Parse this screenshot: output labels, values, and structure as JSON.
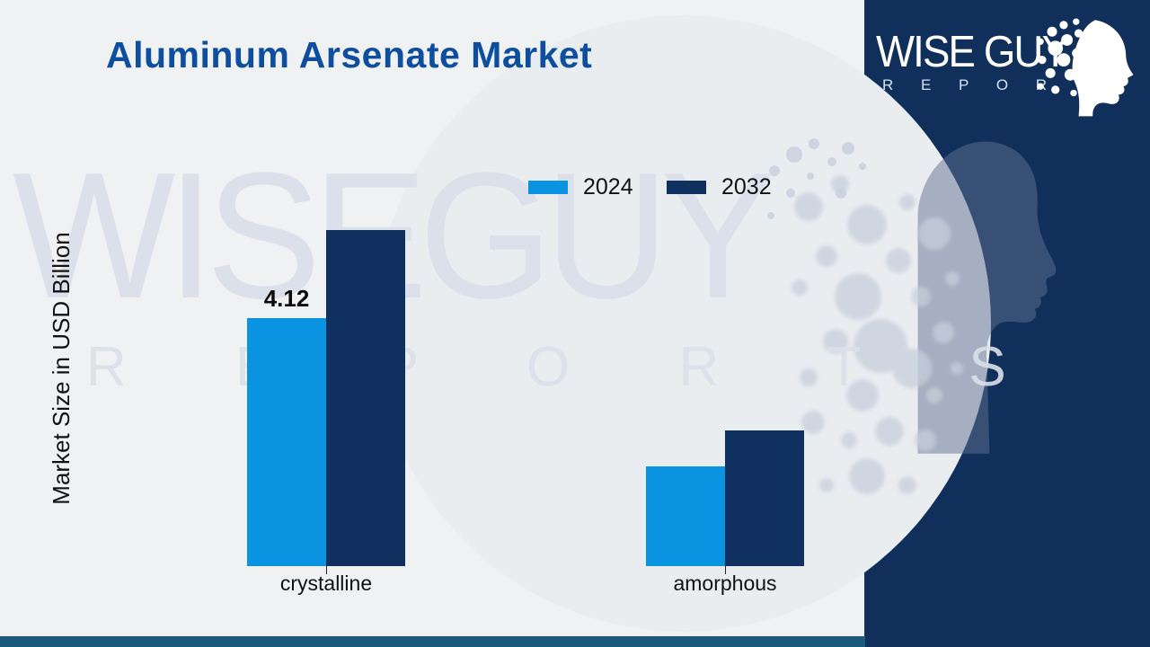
{
  "page_title": "Aluminum Arsenate Market",
  "logo": {
    "brand": "WISE GUY",
    "sub": "R E P O R T S"
  },
  "watermark": {
    "brand": "WISEGUY",
    "sub": "R E P O R T S"
  },
  "chart_data": {
    "type": "bar",
    "title": "Aluminum Arsenate Market",
    "ylabel": "Market Size in USD Billion",
    "xlabel": "",
    "categories": [
      "crystalline",
      "amorphous"
    ],
    "series": [
      {
        "name": "2024",
        "color": "#0a93e0",
        "values": [
          4.12,
          1.66
        ]
      },
      {
        "name": "2032",
        "color": "#10315f",
        "values": [
          5.58,
          2.25
        ]
      }
    ],
    "annotations": [
      {
        "category_index": 0,
        "series_index": 0,
        "text": "4.12"
      }
    ],
    "legend_position": "top",
    "grid": false,
    "value_axis_ticks_visible": false,
    "ylim": [
      0,
      6.5
    ]
  },
  "colors": {
    "background": "#f0f1f3",
    "right_panel": "#112f5b",
    "footer_bar": "#1b5a7d",
    "title_text": "#0d4f9e",
    "watermark_text": "#d9dee9",
    "series_2024": "#0a93e0",
    "series_2032": "#10315f"
  }
}
